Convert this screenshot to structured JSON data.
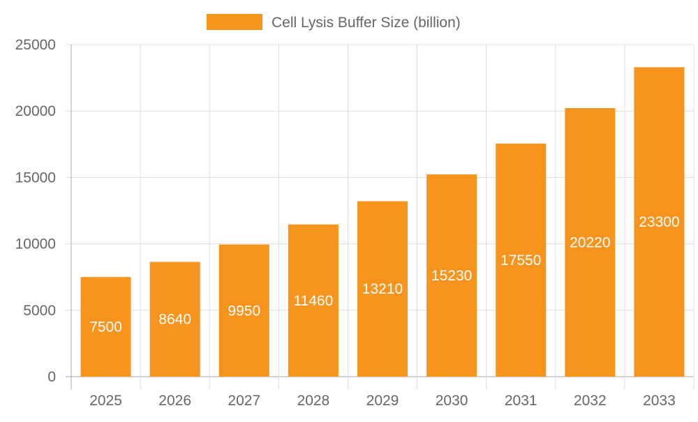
{
  "chart_data": {
    "type": "bar",
    "title": "",
    "xlabel": "",
    "ylabel": "",
    "categories": [
      "2025",
      "2026",
      "2027",
      "2028",
      "2029",
      "2030",
      "2031",
      "2032",
      "2033"
    ],
    "series": [
      {
        "name": "Cell Lysis Buffer Size (billion)",
        "values": [
          7500,
          8640,
          9950,
          11460,
          13210,
          15230,
          17550,
          20220,
          23300
        ],
        "color": "#F7941E"
      }
    ],
    "ylim": [
      0,
      25000
    ],
    "yticks": [
      "0",
      "5000",
      "10000",
      "15000",
      "20000",
      "25000"
    ],
    "grid": true,
    "legend_position": "top",
    "data_labels": true
  }
}
